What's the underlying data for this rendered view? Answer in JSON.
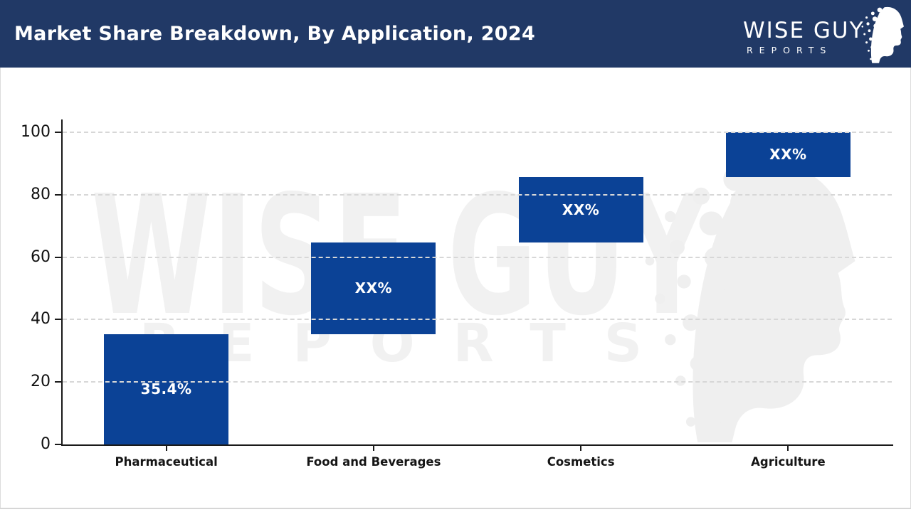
{
  "header": {
    "title": "Market Share Breakdown, By Application, 2024",
    "logo": {
      "line1": "WISE GUY",
      "line2": "REPORTS"
    }
  },
  "watermark": {
    "line1": "WISE GUY",
    "line2": "REPORTS"
  },
  "colors": {
    "header_bg": "#213966",
    "bar_blue": "#0b4296",
    "grid_gray": "#d7d7d7",
    "watermark_gray": "#f1f1f1",
    "axis_black": "#1a1a1a"
  },
  "chart_data": {
    "type": "bar",
    "subtype": "waterfall",
    "title": "Market Share Breakdown, By Application, 2024",
    "xlabel": "",
    "ylabel": "",
    "categories": [
      "Pharmaceutical",
      "Food and Beverages",
      "Cosmetics",
      "Agriculture"
    ],
    "bars": [
      {
        "category": "Pharmaceutical",
        "start": 0,
        "end": 35.4,
        "value": 35.4,
        "label": "35.4%"
      },
      {
        "category": "Food and Beverages",
        "start": 35.4,
        "end": 64.8,
        "value": 29.4,
        "label": "XX%"
      },
      {
        "category": "Cosmetics",
        "start": 64.8,
        "end": 85.7,
        "value": 20.9,
        "label": "XX%"
      },
      {
        "category": "Agriculture",
        "start": 85.7,
        "end": 100,
        "value": 14.3,
        "label": "XX%"
      }
    ],
    "yticks": [
      0,
      20,
      40,
      60,
      80,
      100
    ],
    "ylim": [
      0,
      104
    ],
    "grid": "horizontal-dashed",
    "legend": "none",
    "bar_color": "#0b4296",
    "label_color": "#ffffff"
  }
}
